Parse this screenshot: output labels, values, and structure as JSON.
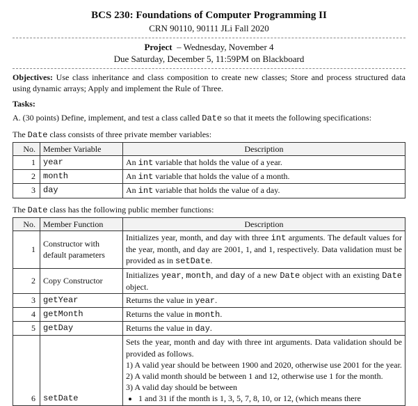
{
  "header": {
    "course_title": "BCS 230: Foundations of Computer Programming II",
    "crn_line": "CRN 90110, 90111 JLi Fall 2020",
    "project_prefix": "Project",
    "project_date": "Wednesday, November 4",
    "due_line": "Due Saturday, December 5, 11:59PM on Blackboard"
  },
  "objectives": {
    "label": "Objectives:",
    "text": " Use class inheritance and class composition to create new classes; Store and process structured data using dynamic arrays; Apply and implement the Rule of Three."
  },
  "tasks": {
    "label": "Tasks:",
    "a_prefix": "A. (30 points) Define, implement, and test a class called ",
    "a_class": "Date",
    "a_suffix": " so that it meets the following specifications:"
  },
  "members_intro_prefix": "The ",
  "members_intro_class": "Date",
  "members_intro_suffix": " class consists of three private member variables:",
  "members_headers": {
    "no": "No.",
    "var": "Member Variable",
    "desc": "Description"
  },
  "members": [
    {
      "no": "1",
      "var": "year",
      "desc_pre": "An ",
      "desc_code": "int",
      "desc_post": " variable that holds the value of a year."
    },
    {
      "no": "2",
      "var": "month",
      "desc_pre": "An ",
      "desc_code": "int",
      "desc_post": " variable that holds the value of a month."
    },
    {
      "no": "3",
      "var": "day",
      "desc_pre": "An ",
      "desc_code": "int",
      "desc_post": " variable that holds the value of a day."
    }
  ],
  "funcs_intro_prefix": "The ",
  "funcs_intro_class": "Date",
  "funcs_intro_suffix": " class has the following public member functions:",
  "funcs_headers": {
    "no": "No.",
    "fn": "Member Function",
    "desc": "Description"
  },
  "funcs": {
    "r1": {
      "no": "1",
      "fn": "Constructor with default parameters",
      "d_a": "Initializes year, month, and day with three ",
      "d_b": "int",
      "d_c": " arguments. The default values for the year, month, and day are 2001, 1, and 1, respectively. Data validation must be provided as in ",
      "d_d": "setDate",
      "d_e": "."
    },
    "r2": {
      "no": "2",
      "fn": "Copy Constructor",
      "d_a": "Initializes ",
      "d_b": "year",
      "d_c": ", ",
      "d_d": "month",
      "d_e": ", and ",
      "d_f": "day",
      "d_g": " of a new ",
      "d_h": "Date",
      "d_i": " object with an existing ",
      "d_j": "Date",
      "d_k": " object."
    },
    "r3": {
      "no": "3",
      "fn": "getYear",
      "d_a": "Returns the value in ",
      "d_b": "year",
      "d_c": "."
    },
    "r4": {
      "no": "4",
      "fn": "getMonth",
      "d_a": "Returns the value in ",
      "d_b": "month",
      "d_c": "."
    },
    "r5": {
      "no": "5",
      "fn": "getDay",
      "d_a": "Returns the value in ",
      "d_b": "day",
      "d_c": "."
    },
    "r6": {
      "no": "6",
      "fn": "setDate",
      "l0": "Sets the year, month and day with three int arguments. Data validation should be provided as follows.",
      "l1": "1) A valid year should be between 1900 and 2020, otherwise use 2001 for the year.",
      "l2": "2) A valid month should be between 1 and 12, otherwise use 1 for the month.",
      "l3": "3) A valid day should be between",
      "l4": "1 and 31 if the month is 1, 3, 5, 7, 8, 10, or 12, (which means there"
    }
  }
}
